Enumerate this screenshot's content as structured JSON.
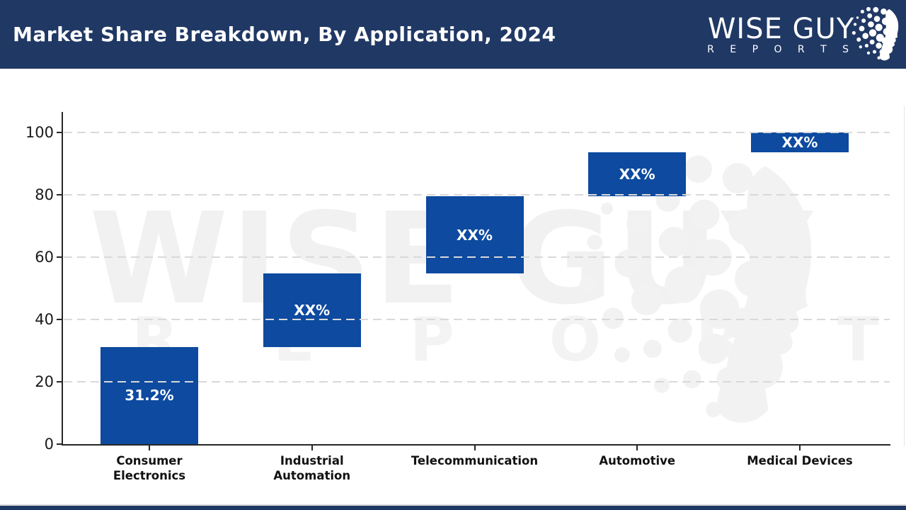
{
  "header": {
    "title": "Market Share Breakdown, By Application, 2024",
    "bg_color": "#203864",
    "logo": {
      "wordmark": "WISE GUY",
      "subtext": "R E P O R T S"
    }
  },
  "watermark": {
    "line1": "WISE GUY",
    "line2": "R E P O R T S"
  },
  "chart_data": {
    "type": "bar",
    "subtype": "waterfall",
    "title": "Market Share Breakdown, By Application, 2024",
    "categories": [
      "Consumer Electronics",
      "Industrial Automation",
      "Telecommunication",
      "Automotive",
      "Medical Devices"
    ],
    "segments": [
      {
        "category": "Consumer Electronics",
        "start": 0,
        "end": 31.2,
        "label": "31.2%"
      },
      {
        "category": "Industrial Automation",
        "start": 31.2,
        "end": 54.8,
        "label": "XX%"
      },
      {
        "category": "Telecommunication",
        "start": 54.8,
        "end": 79.5,
        "label": "XX%"
      },
      {
        "category": "Automotive",
        "start": 79.5,
        "end": 93.6,
        "label": "XX%"
      },
      {
        "category": "Medical Devices",
        "start": 93.6,
        "end": 100,
        "label": "XX%"
      }
    ],
    "xlabel": "",
    "ylabel": "",
    "ylim": [
      0,
      100
    ],
    "yticks": [
      0,
      20,
      40,
      60,
      80,
      100
    ],
    "grid": "dashed-horizontal",
    "legend": "none",
    "bar_color": "#0d4aa0",
    "bar_label_color": "#ffffff",
    "axis_color": "#262626",
    "grid_color": "#d9d9d9"
  },
  "footer": {
    "bar_color": "#203864"
  }
}
